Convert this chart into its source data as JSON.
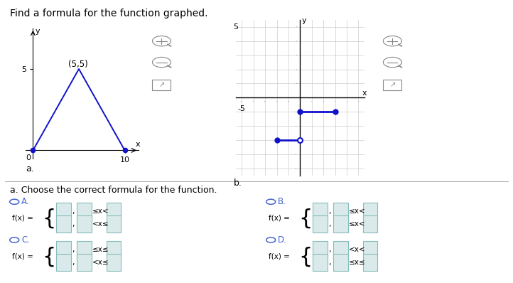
{
  "title": "Find a formula for the function graphed.",
  "graph_a": {
    "points": [
      [
        0,
        0
      ],
      [
        5,
        5
      ],
      [
        10,
        0
      ]
    ],
    "label": "(5,5)",
    "xlim": [
      -0.8,
      11.5
    ],
    "ylim": [
      -0.5,
      7.5
    ],
    "xtick_vals": [
      0,
      10
    ],
    "xtick_labels": [
      "0",
      "10"
    ],
    "ytick_vals": [
      5
    ],
    "ytick_labels": [
      "5"
    ],
    "color": "#1111cc",
    "filled_points": [
      [
        0,
        0
      ],
      [
        10,
        0
      ]
    ],
    "subplot_label": "a."
  },
  "graph_b": {
    "segments": [
      {
        "x": [
          -2,
          0
        ],
        "y": [
          -3,
          -3
        ],
        "open_left": false,
        "open_right": true
      },
      {
        "x": [
          0,
          3
        ],
        "y": [
          -1,
          -1
        ],
        "open_left": false,
        "open_right": false
      }
    ],
    "xlim": [
      -5.5,
      5.5
    ],
    "ylim": [
      -5.5,
      5.5
    ],
    "color": "#1111cc",
    "subplot_label": "b."
  },
  "bottom_text": "a. Choose the correct formula for the function.",
  "options": [
    {
      "label": "A.",
      "row1_ineq": "≤x<",
      "row2_ineq": "<x≤"
    },
    {
      "label": "B.",
      "row1_ineq": "≤x<",
      "row2_ineq": "≤x<"
    },
    {
      "label": "C.",
      "row1_ineq": "≤x≤",
      "row2_ineq": "<x≤"
    },
    {
      "label": "D.",
      "row1_ineq": "<x<",
      "row2_ineq": "≤x≤"
    }
  ],
  "background_color": "#ffffff",
  "grid_color": "#cccccc",
  "box_fill": "#daeaea",
  "box_edge": "#88bbbb",
  "circle_color": "#4466cc",
  "text_color": "#000000",
  "title_fontsize": 10,
  "axis_fontsize": 8
}
